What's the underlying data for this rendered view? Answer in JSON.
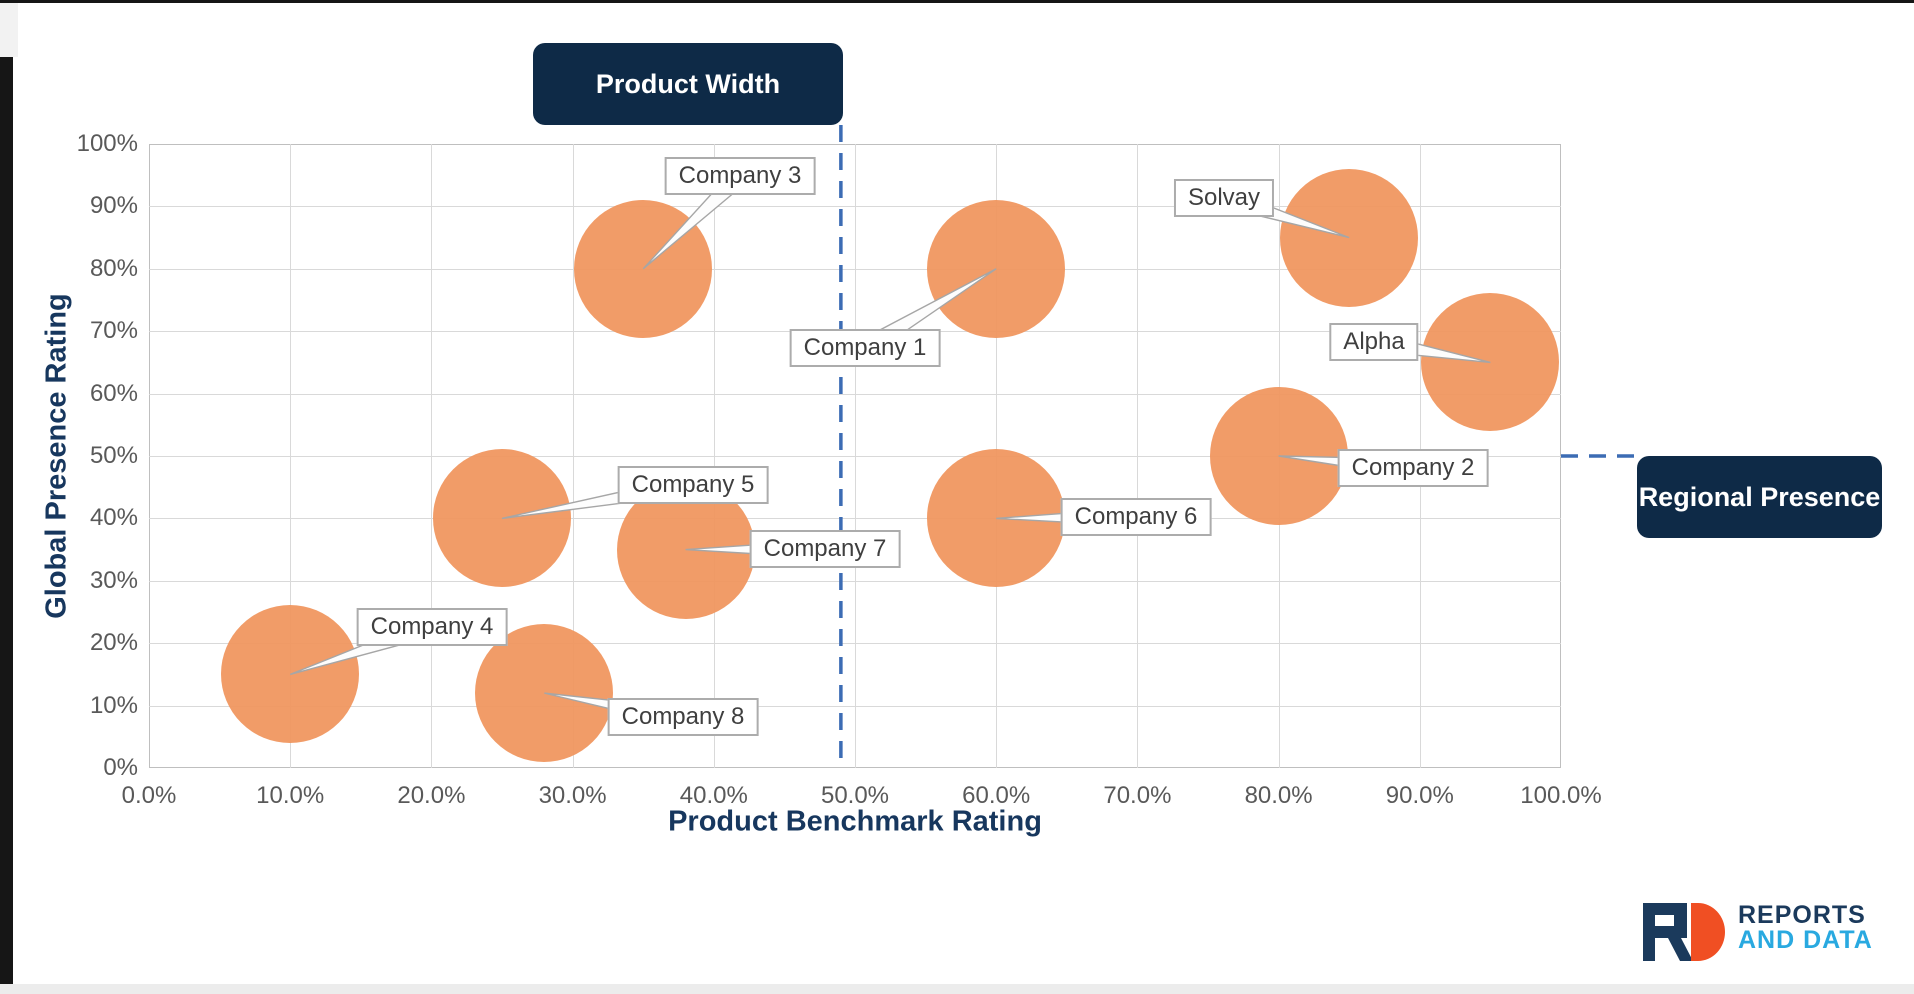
{
  "chart_data": {
    "type": "scatter",
    "subtype": "bubble",
    "title": "",
    "xlabel": "Product Benchmark Rating",
    "ylabel": "Global Presence Rating",
    "xlim": [
      0,
      100
    ],
    "ylim": [
      0,
      100
    ],
    "grid": true,
    "x_tick_labels": [
      "0.0%",
      "10.0%",
      "20.0%",
      "30.0%",
      "40.0%",
      "50.0%",
      "60.0%",
      "70.0%",
      "80.0%",
      "90.0%",
      "100.0%"
    ],
    "y_tick_labels": [
      "0%",
      "10%",
      "20%",
      "30%",
      "40%",
      "50%",
      "60%",
      "70%",
      "80%",
      "90%",
      "100%"
    ],
    "series": [
      {
        "name": "Company 3",
        "x": 35,
        "y": 80
      },
      {
        "name": "Company 1",
        "x": 60,
        "y": 80
      },
      {
        "name": "Solvay",
        "x": 85,
        "y": 85
      },
      {
        "name": "Alpha",
        "x": 95,
        "y": 65
      },
      {
        "name": "Company 2",
        "x": 80,
        "y": 50
      },
      {
        "name": "Company 5",
        "x": 25,
        "y": 40
      },
      {
        "name": "Company 7",
        "x": 38,
        "y": 35
      },
      {
        "name": "Company 6",
        "x": 60,
        "y": 40
      },
      {
        "name": "Company 4",
        "x": 10,
        "y": 15
      },
      {
        "name": "Company 8",
        "x": 28,
        "y": 12
      }
    ],
    "divider_x": 49,
    "divider_y": 50,
    "legend_position": "none"
  },
  "annotations": {
    "product_width": "Product Width",
    "regional_presence": "Regional Presence"
  },
  "logo": {
    "text_line1": "REPORTS",
    "text_line2": "AND DATA"
  },
  "colors": {
    "bubble": "#F0955C",
    "navy_box": "#0E2A47",
    "dashed_line": "#3C6CB4",
    "axis_title": "#17375E",
    "tick_text": "#595959",
    "gridline": "#D9D9D9",
    "callout_border": "#ACACAC",
    "logo_navy": "#1B3A5C",
    "logo_orange": "#F04F23",
    "logo_blue": "#29A9E0"
  }
}
